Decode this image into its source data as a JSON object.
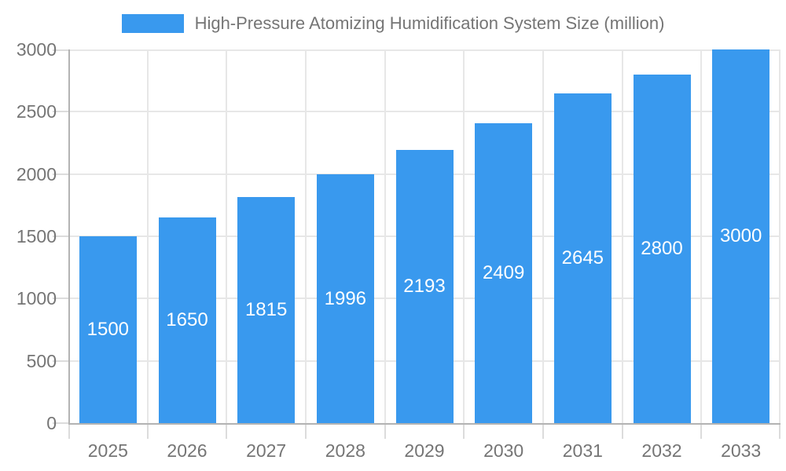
{
  "legend": {
    "label": "High-Pressure Atomizing Humidification System Size (million)"
  },
  "chart_data": {
    "type": "bar",
    "title": "High-Pressure Atomizing Humidification System Size (million)",
    "categories": [
      "2025",
      "2026",
      "2027",
      "2028",
      "2029",
      "2030",
      "2031",
      "2032",
      "2033"
    ],
    "values": [
      1500,
      1650,
      1815,
      1996,
      2193,
      2409,
      2645,
      2800,
      3000
    ],
    "series": [
      {
        "name": "High-Pressure Atomizing Humidification System Size (million)",
        "values": [
          1500,
          1650,
          1815,
          1996,
          2193,
          2409,
          2645,
          2800,
          3000
        ]
      }
    ],
    "xlabel": "",
    "ylabel": "",
    "ylim": [
      0,
      3000
    ],
    "yticks": [
      0,
      500,
      1000,
      1500,
      2000,
      2500,
      3000
    ],
    "grid": true,
    "legend_position": "top-center",
    "value_labels": "inside-middle"
  },
  "colors": {
    "bar": "#3999EE",
    "text": "#757575",
    "value_text": "#FFFFFF",
    "gridline": "#E7E7E7",
    "tick": "#DCDCDC",
    "axis_line": "#B3B3B3",
    "background": "#FFFFFF"
  }
}
